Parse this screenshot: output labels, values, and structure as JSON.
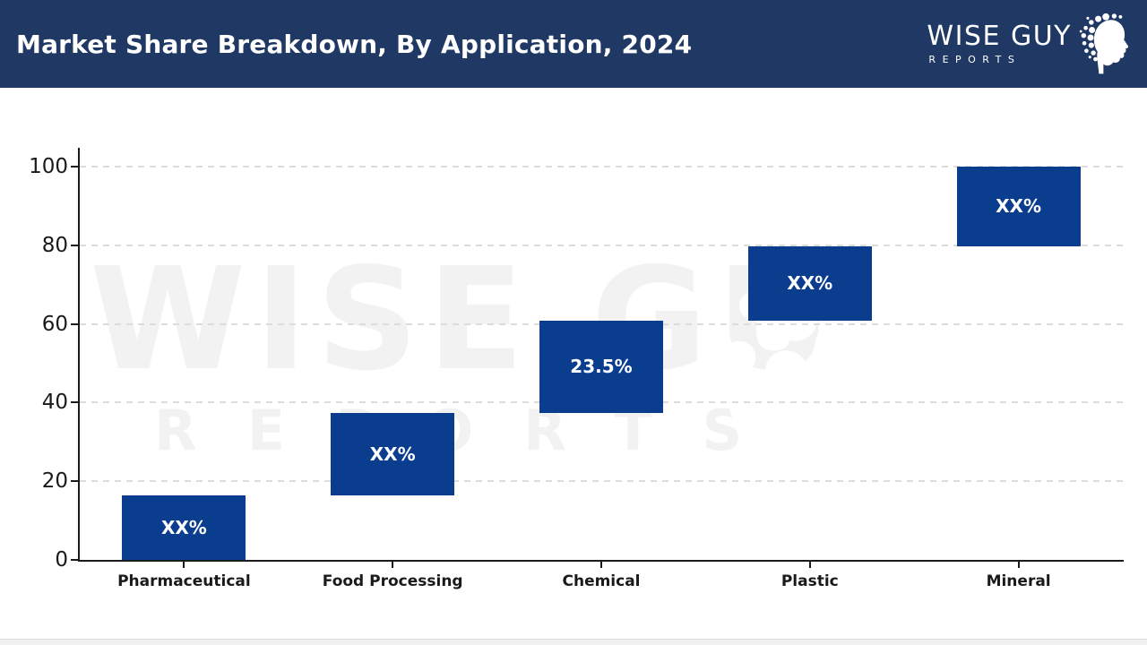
{
  "colors": {
    "navy": "#1F3864",
    "bar_blue": "#0B3D8F",
    "grid": "#DCDCDC",
    "axis": "#1A1A1A",
    "watermark": "#F2F2F2"
  },
  "header": {
    "title": "Market Share Breakdown, By Application, 2024",
    "logo": {
      "name": "WISE GUY",
      "subtitle": "REPORTS"
    }
  },
  "watermark": {
    "line1": "WISE GUY",
    "line2": "REPORTS"
  },
  "chart_data": {
    "type": "bar",
    "subtype": "waterfall",
    "title": "Market Share Breakdown, By Application, 2024",
    "categories": [
      "Pharmaceutical",
      "Food Processing",
      "Chemical",
      "Plastic",
      "Mineral"
    ],
    "segments": [
      {
        "category": "Pharmaceutical",
        "start": 0,
        "end": 16.5,
        "value": 16.5,
        "label": "XX%"
      },
      {
        "category": "Food Processing",
        "start": 16.5,
        "end": 37.4,
        "value": 20.9,
        "label": "XX%"
      },
      {
        "category": "Chemical",
        "start": 37.4,
        "end": 60.9,
        "value": 23.5,
        "label": "23.5%"
      },
      {
        "category": "Plastic",
        "start": 60.9,
        "end": 79.8,
        "value": 18.9,
        "label": "XX%"
      },
      {
        "category": "Mineral",
        "start": 79.8,
        "end": 100,
        "value": 20.2,
        "label": "XX%"
      }
    ],
    "xlabel": "",
    "ylabel": "",
    "y_ticks": [
      0,
      20,
      40,
      60,
      80,
      100
    ],
    "ylim": [
      0,
      105
    ],
    "grid": "dashed-horizontal",
    "legend": "none"
  }
}
